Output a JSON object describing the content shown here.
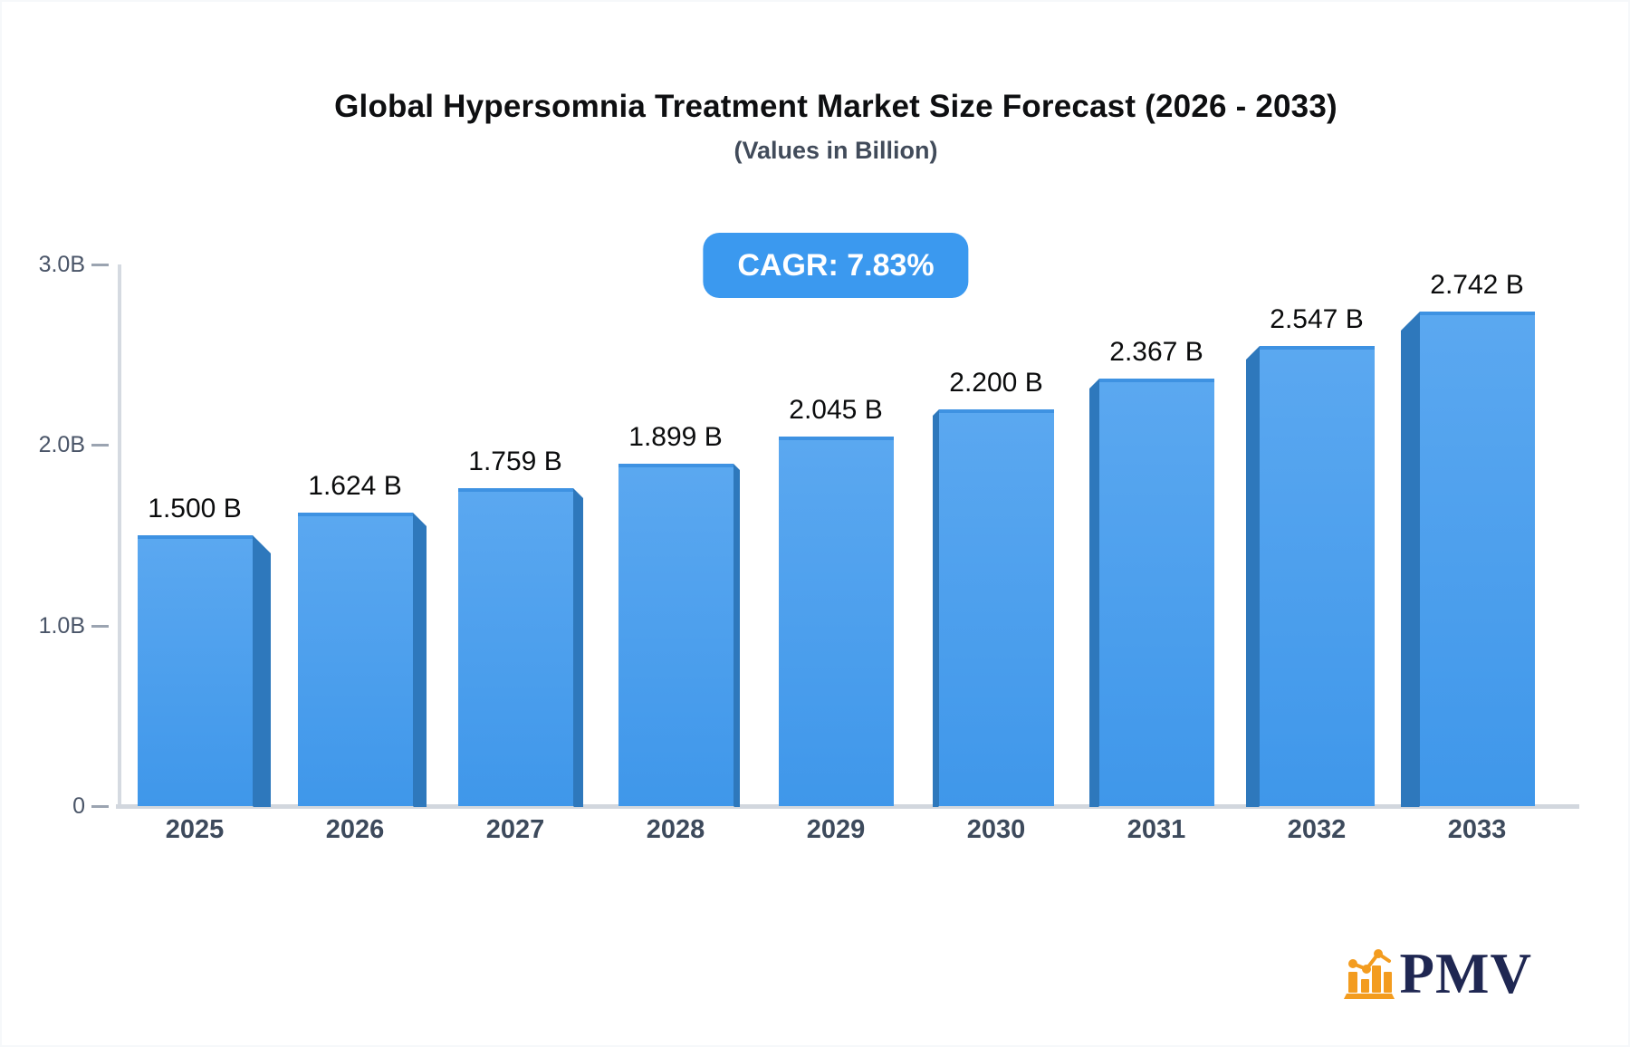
{
  "header": {
    "title": "Global Hypersomnia Treatment Market Size Forecast (2026 - 2033)",
    "subtitle": "(Values in Billion)",
    "cagr_label": "CAGR: 7.83%"
  },
  "chart_data": {
    "type": "bar",
    "title": "Global Hypersomnia Treatment Market Size Forecast (2026 - 2033)",
    "subtitle": "(Values in Billion)",
    "unit": "Billion USD",
    "cagr": "7.83%",
    "categories": [
      "2025",
      "2026",
      "2027",
      "2028",
      "2029",
      "2030",
      "2031",
      "2032",
      "2033"
    ],
    "values": [
      1.5,
      1.624,
      1.759,
      1.899,
      2.045,
      2.2,
      2.367,
      2.547,
      2.742
    ],
    "value_labels": [
      "1.500 B",
      "1.624 B",
      "1.759 B",
      "1.899 B",
      "2.045 B",
      "2.200 B",
      "2.367 B",
      "2.547 B",
      "2.742 B"
    ],
    "y_axis": {
      "tick_labels": [
        "3.0B",
        "2.0B",
        "1.0B",
        "0"
      ],
      "tick_values": [
        3.0,
        2.0,
        1.0,
        0
      ],
      "ylim": [
        0,
        3.0
      ]
    },
    "legend": "none",
    "grid": "off",
    "style": "3d-extruded-bars"
  },
  "colors": {
    "badge_bg": "#3b99ef",
    "bar_face_top": "#5ba8f0",
    "bar_face_bottom": "#3f97ea",
    "bar_top_edge": "#3e92e2",
    "bar_side": "#2e78bc",
    "axis_line": "#d5dae1",
    "tick": "#9ba4b1",
    "logo_orange": "#f39c1f",
    "logo_navy": "#1f2752"
  },
  "logo": {
    "text": "PMV",
    "icon": "bar-chart-logo-icon"
  }
}
